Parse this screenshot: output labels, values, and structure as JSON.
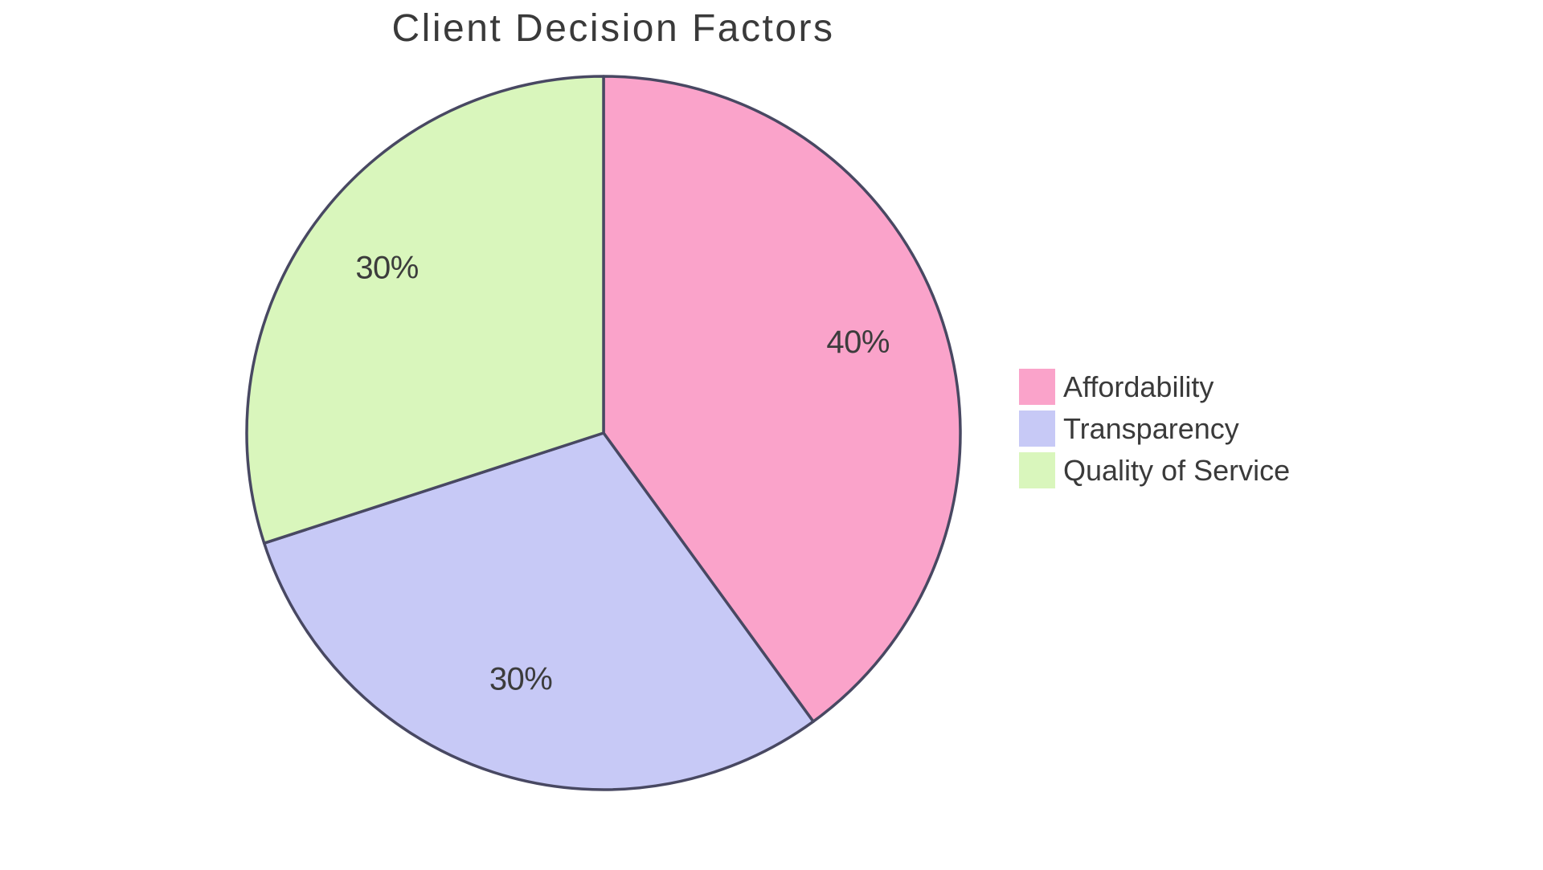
{
  "title": "Client Decision Factors",
  "chart_data": {
    "type": "pie",
    "labels": [
      "Affordability",
      "Transparency",
      "Quality of Service"
    ],
    "values": [
      40,
      30,
      30
    ],
    "slice_labels": [
      "40%",
      "30%",
      "30%"
    ],
    "colors": [
      "#FAA3CA",
      "#C7C9F6",
      "#D9F6BC"
    ],
    "slice_border_color": "#484862",
    "slice_border_width": 3.5,
    "start_angle_deg": 0,
    "direction": "clockwise",
    "text_color": "#3C3C3C",
    "legend_position": "right"
  }
}
